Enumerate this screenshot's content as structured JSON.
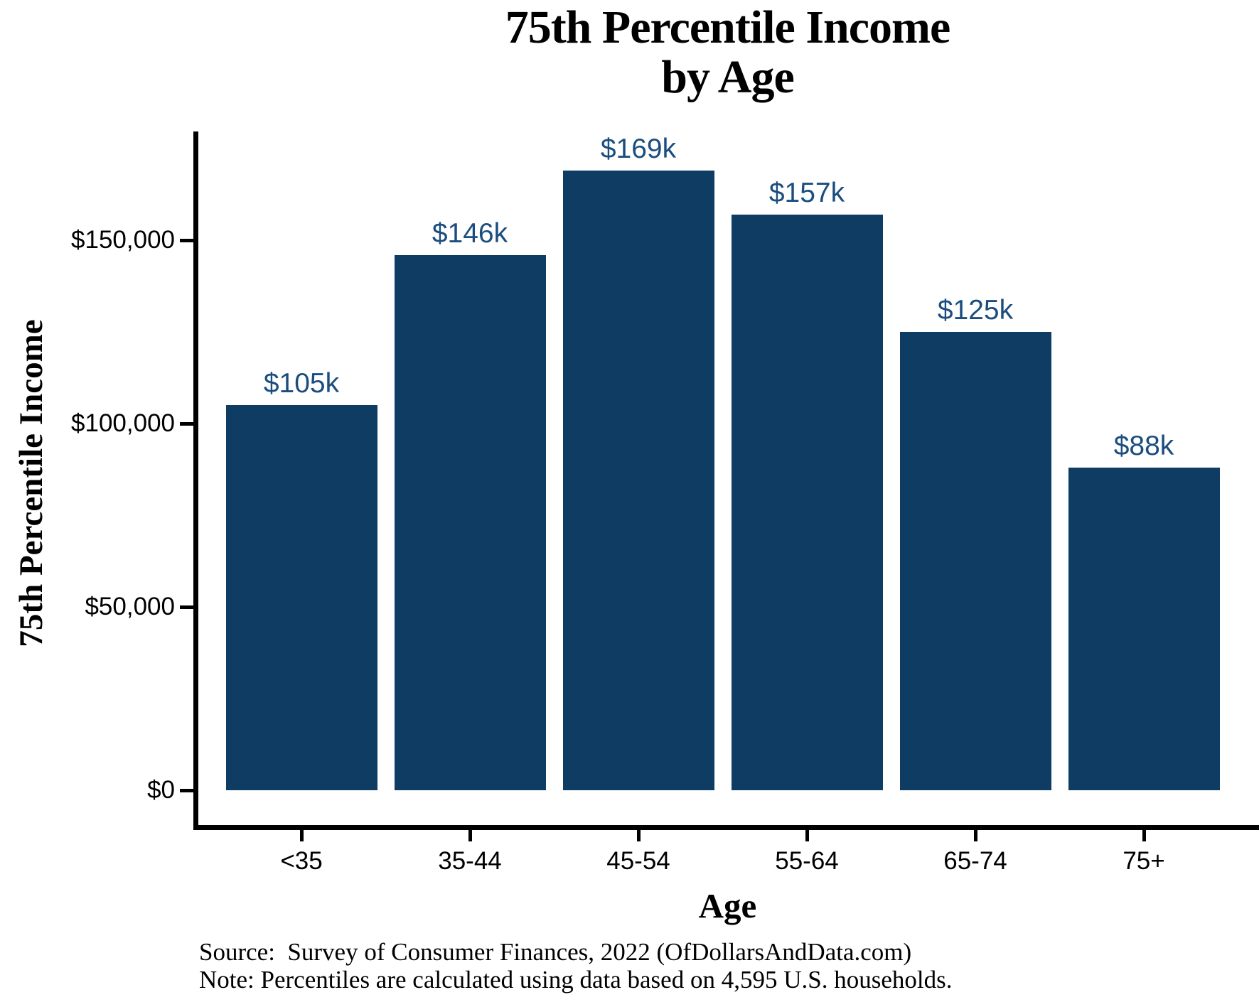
{
  "figure": {
    "title_line1": "75th Percentile Income",
    "title_line2": "by Age",
    "caption_line1": "Source:  Survey of Consumer Finances, 2022 (OfDollarsAndData.com)",
    "caption_line2": "Note: Percentiles are calculated using data based on 4,595 U.S. households."
  },
  "chart_data": {
    "type": "bar",
    "title": "75th Percentile Income by Age",
    "xlabel": "Age",
    "ylabel": "75th Percentile Income",
    "categories": [
      "<35",
      "35-44",
      "45-54",
      "55-64",
      "65-74",
      "75+"
    ],
    "values": [
      105000,
      146000,
      169000,
      157000,
      125000,
      88000
    ],
    "bar_labels": [
      "$105k",
      "$146k",
      "$169k",
      "$157k",
      "$125k",
      "$88k"
    ],
    "ytick_values": [
      0,
      50000,
      100000,
      150000
    ],
    "ytick_labels": [
      "$0",
      "$50,000",
      "$100,000",
      "$150,000"
    ],
    "ylim": [
      0,
      178000
    ],
    "grid": false,
    "legend_position": "none",
    "colors": {
      "bar_fill": "#0e3c62",
      "bar_label_text": "#1b4d7e",
      "axis": "#000000",
      "background": "#ffffff"
    }
  }
}
